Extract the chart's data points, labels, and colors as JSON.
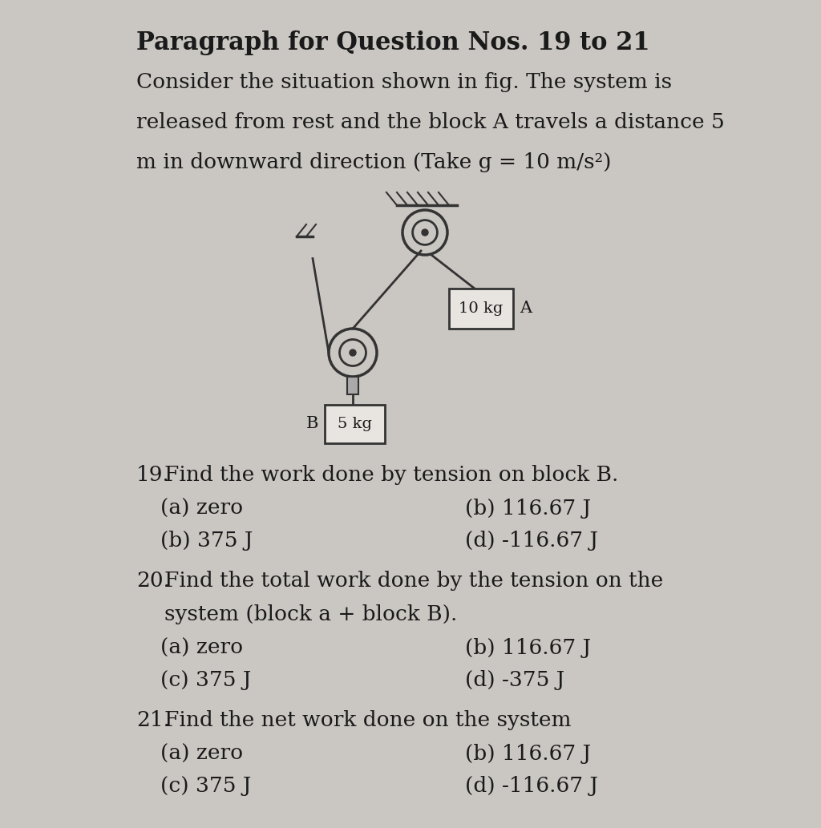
{
  "background_color": "#cac6c2",
  "title": "Paragraph for Question Nos. 19 to 21",
  "text_color": "#1a1a1a",
  "para_line1": "Consider the situation shown in fig. The system is",
  "para_line2": "released from rest and the block A travels a distance 5",
  "para_line3": "m in downward direction (Take g = 10 m/s²)",
  "q19_text": "Find the work done by tension on block B.",
  "q19_a": "(a) zero",
  "q19_b": "(b) 116.67 J",
  "q19_c": "(b) 375 J",
  "q19_d": "(d) -116.67 J",
  "q20_text1": "Find the total work done by the tension on the",
  "q20_text2": "system (block a + block B).",
  "q20_a": "(a) zero",
  "q20_b": "(b) 116.67 J",
  "q20_c": "(c) 375 J",
  "q20_d": "(d) -375 J",
  "q21_text": "Find the net work done on the system",
  "q21_a": "(a) zero",
  "q21_b": "(b) 116.67 J",
  "q21_c": "(c) 375 J",
  "q21_d": "(d) -116.67 J"
}
